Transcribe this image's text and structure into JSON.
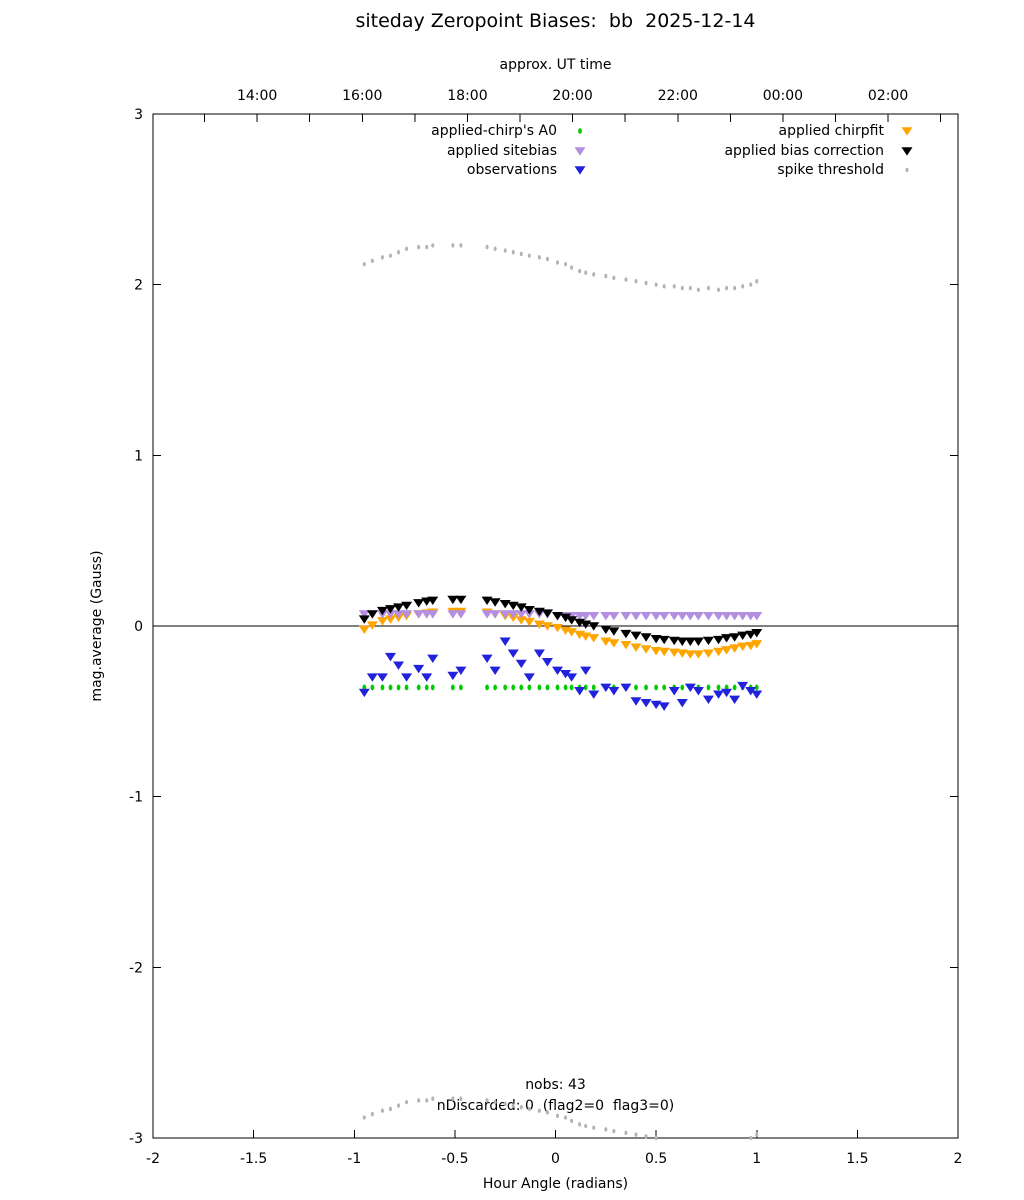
{
  "title": "siteday Zeropoint Biases:  bb  2025-12-14",
  "footer": {
    "nobs": "nobs: 43",
    "ndiscarded": "nDiscarded: 0  (flag2=0  flag3=0)"
  },
  "chart_data": {
    "type": "scatter",
    "title": "siteday Zeropoint Biases:  bb  2025-12-14",
    "xlabel": "Hour Angle (radians)",
    "ylabel": "mag.average (Gauss)",
    "x2label": "approx. UT time",
    "xlim": [
      -2,
      2
    ],
    "ylim": [
      -3,
      3
    ],
    "grid": false,
    "zero_line": true,
    "x_ticks": [
      {
        "label": "-2",
        "x": -2
      },
      {
        "label": "-1.5",
        "x": -1.5
      },
      {
        "label": "-1",
        "x": -1
      },
      {
        "label": "-0.5",
        "x": -0.5
      },
      {
        "label": "0",
        "x": 0
      },
      {
        "label": "0.5",
        "x": 0.5
      },
      {
        "label": "1",
        "x": 1
      },
      {
        "label": "1.5",
        "x": 1.5
      },
      {
        "label": "2",
        "x": 2
      }
    ],
    "y_ticks": [
      {
        "label": "-3",
        "y": -3
      },
      {
        "label": "-2",
        "y": -2
      },
      {
        "label": "-1",
        "y": -1
      },
      {
        "label": "0",
        "y": 0
      },
      {
        "label": "1",
        "y": 1
      },
      {
        "label": "2",
        "y": 2
      },
      {
        "label": "3",
        "y": 3
      }
    ],
    "x2_ticks": [
      {
        "label": "14:00",
        "x": -1.4825
      },
      {
        "label": "16:00",
        "x": -0.96
      },
      {
        "label": "18:00",
        "x": -0.4375
      },
      {
        "label": "20:00",
        "x": 0.085
      },
      {
        "label": "22:00",
        "x": 0.6075
      },
      {
        "label": "00:00",
        "x": 1.13
      },
      {
        "label": "02:00",
        "x": 1.6525
      }
    ],
    "x2_minor_ticks": [
      -1.74375,
      -1.22125,
      -0.69875,
      -0.17625,
      0.34625,
      0.86875,
      1.39125,
      1.91375
    ],
    "x": [
      -0.95,
      -0.91,
      -0.86,
      -0.82,
      -0.78,
      -0.74,
      -0.68,
      -0.64,
      -0.61,
      -0.51,
      -0.47,
      -0.34,
      -0.3,
      -0.25,
      -0.21,
      -0.17,
      -0.13,
      -0.08,
      -0.04,
      0.01,
      0.05,
      0.08,
      0.12,
      0.15,
      0.19,
      0.25,
      0.29,
      0.35,
      0.4,
      0.45,
      0.5,
      0.54,
      0.59,
      0.63,
      0.67,
      0.71,
      0.76,
      0.81,
      0.85,
      0.89,
      0.93,
      0.97,
      1.0
    ],
    "series": [
      {
        "name": "applied-chirp's A0",
        "marker": "dot",
        "color": "#00cc00",
        "y": [
          -0.36,
          -0.36,
          -0.36,
          -0.36,
          -0.36,
          -0.36,
          -0.36,
          -0.36,
          -0.36,
          -0.36,
          -0.36,
          -0.36,
          -0.36,
          -0.36,
          -0.36,
          -0.36,
          -0.36,
          -0.36,
          -0.36,
          -0.36,
          -0.36,
          -0.36,
          -0.36,
          -0.36,
          -0.36,
          -0.36,
          -0.36,
          -0.36,
          -0.36,
          -0.36,
          -0.36,
          -0.36,
          -0.36,
          -0.36,
          -0.36,
          -0.36,
          -0.36,
          -0.36,
          -0.36,
          -0.36,
          -0.36,
          -0.36,
          -0.36
        ]
      },
      {
        "name": "applied chirpfit",
        "marker": "triangle-down",
        "color": "#ffa500",
        "y": [
          -0.02,
          0.005,
          0.03,
          0.04,
          0.05,
          0.06,
          0.07,
          0.075,
          0.08,
          0.085,
          0.085,
          0.08,
          0.07,
          0.06,
          0.05,
          0.035,
          0.025,
          0.01,
          0.0,
          -0.01,
          -0.025,
          -0.035,
          -0.05,
          -0.06,
          -0.07,
          -0.09,
          -0.1,
          -0.11,
          -0.125,
          -0.135,
          -0.145,
          -0.15,
          -0.155,
          -0.16,
          -0.165,
          -0.165,
          -0.16,
          -0.15,
          -0.14,
          -0.13,
          -0.12,
          -0.115,
          -0.105
        ]
      },
      {
        "name": "applied sitebias",
        "marker": "triangle-down",
        "color": "#b48ee0",
        "y": [
          0.07,
          0.07,
          0.07,
          0.07,
          0.07,
          0.07,
          0.07,
          0.07,
          0.07,
          0.07,
          0.07,
          0.07,
          0.07,
          0.07,
          0.07,
          0.07,
          0.07,
          0.07,
          0.07,
          0.06,
          0.06,
          0.06,
          0.06,
          0.06,
          0.06,
          0.06,
          0.06,
          0.06,
          0.06,
          0.06,
          0.06,
          0.06,
          0.06,
          0.06,
          0.06,
          0.06,
          0.06,
          0.06,
          0.06,
          0.06,
          0.06,
          0.06,
          0.06
        ]
      },
      {
        "name": "applied bias correction",
        "marker": "triangle-down",
        "color": "#000000",
        "y": [
          0.04,
          0.07,
          0.09,
          0.1,
          0.11,
          0.12,
          0.135,
          0.145,
          0.15,
          0.155,
          0.155,
          0.15,
          0.14,
          0.13,
          0.12,
          0.11,
          0.095,
          0.085,
          0.075,
          0.06,
          0.05,
          0.035,
          0.02,
          0.01,
          0.0,
          -0.02,
          -0.03,
          -0.045,
          -0.055,
          -0.065,
          -0.075,
          -0.08,
          -0.085,
          -0.09,
          -0.09,
          -0.09,
          -0.085,
          -0.08,
          -0.07,
          -0.065,
          -0.055,
          -0.05,
          -0.04
        ]
      },
      {
        "name": "observations",
        "marker": "triangle-down",
        "color": "#2222dd",
        "y": [
          -0.39,
          -0.3,
          -0.3,
          -0.18,
          -0.23,
          -0.3,
          -0.25,
          -0.3,
          -0.19,
          -0.29,
          -0.26,
          -0.19,
          -0.26,
          -0.09,
          -0.16,
          -0.22,
          -0.3,
          -0.16,
          -0.21,
          -0.26,
          -0.28,
          -0.3,
          -0.38,
          -0.26,
          -0.4,
          -0.36,
          -0.38,
          -0.36,
          -0.44,
          -0.45,
          -0.46,
          -0.47,
          -0.38,
          -0.45,
          -0.36,
          -0.38,
          -0.43,
          -0.4,
          -0.39,
          -0.43,
          -0.35,
          -0.38,
          -0.4
        ]
      },
      {
        "name": "spike threshold",
        "marker": "small-dot",
        "color": "#b3b3b3",
        "y": [
          2.12,
          2.14,
          2.16,
          2.17,
          2.19,
          2.21,
          2.22,
          2.22,
          2.23,
          2.23,
          2.23,
          2.22,
          2.21,
          2.2,
          2.19,
          2.18,
          2.17,
          2.16,
          2.15,
          2.13,
          2.12,
          2.1,
          2.08,
          2.07,
          2.06,
          2.05,
          2.04,
          2.03,
          2.02,
          2.01,
          2.0,
          1.99,
          1.99,
          1.98,
          1.98,
          1.97,
          1.98,
          1.97,
          1.98,
          1.98,
          1.99,
          2.0,
          2.02
        ],
        "y_lower": [
          -2.88,
          -2.86,
          -2.84,
          -2.83,
          -2.81,
          -2.79,
          -2.78,
          -2.78,
          -2.77,
          -2.77,
          -2.77,
          -2.78,
          -2.79,
          -2.8,
          -2.81,
          -2.82,
          -2.83,
          -2.84,
          -2.85,
          -2.87,
          -2.88,
          -2.9,
          -2.92,
          -2.93,
          -2.94,
          -2.95,
          -2.96,
          -2.97,
          -2.98,
          -2.99,
          -3.0,
          null,
          null,
          null,
          null,
          null,
          null,
          null,
          null,
          null,
          null,
          -3.0,
          -2.98
        ]
      }
    ],
    "legend": {
      "position": "top-center-two-columns",
      "left_column": [
        0,
        2,
        4
      ],
      "right_column": [
        1,
        3,
        5
      ]
    }
  }
}
